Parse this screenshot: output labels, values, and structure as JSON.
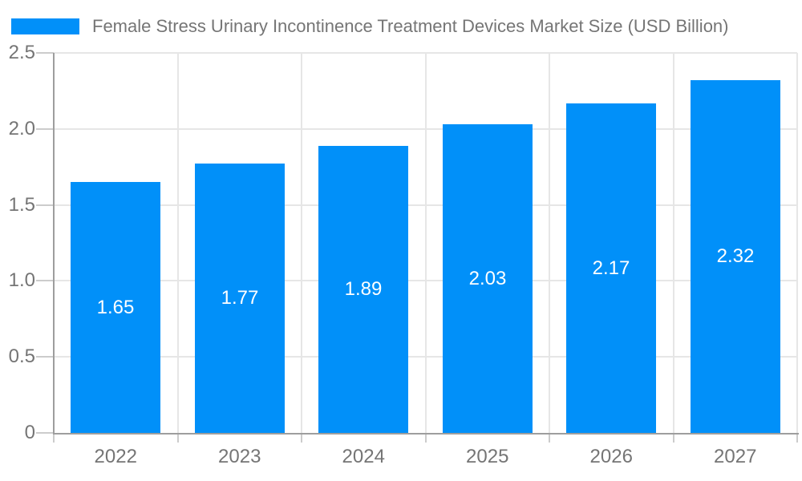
{
  "chart_data": {
    "type": "bar",
    "title": "Female Stress Urinary Incontinence Treatment Devices Market Size (USD Billion)",
    "categories": [
      "2022",
      "2023",
      "2024",
      "2025",
      "2026",
      "2027"
    ],
    "values": [
      1.65,
      1.77,
      1.89,
      2.03,
      2.17,
      2.32
    ],
    "value_labels": [
      "1.65",
      "1.77",
      "1.89",
      "2.03",
      "2.17",
      "2.32"
    ],
    "xlabel": "",
    "ylabel": "",
    "ylim": [
      0,
      2.5
    ],
    "yticks": [
      0,
      0.5,
      1.0,
      1.5,
      2.0,
      2.5
    ],
    "ytick_labels": [
      "0",
      "0.5",
      "1.0",
      "1.5",
      "2.0",
      "2.5"
    ],
    "grid": true,
    "legend_position": "top-left",
    "colors": {
      "bar": "#0190f9",
      "bar_label": "#ffffff",
      "axis_text": "#757575",
      "axis_line": "#9e9e9e",
      "gridline": "#e6e6e6",
      "tick": "#cccccc",
      "background": "#ffffff"
    }
  }
}
